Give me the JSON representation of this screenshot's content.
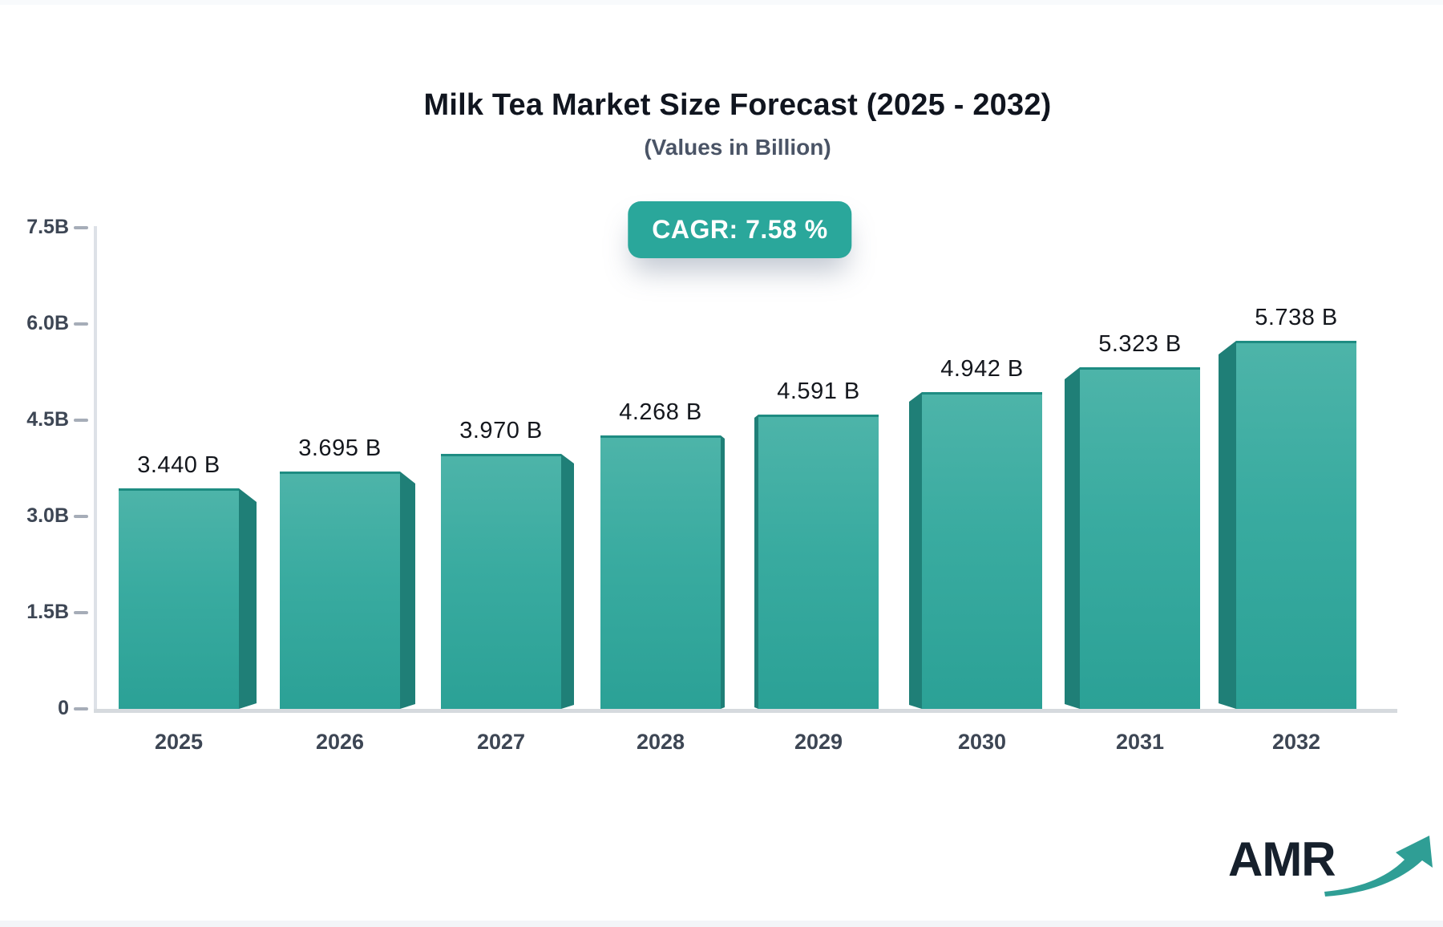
{
  "title": "Milk Tea Market Size Forecast (2025 - 2032)",
  "subtitle": "(Values in Billion)",
  "badge": {
    "label": "CAGR: 7.58 %"
  },
  "logo": {
    "text": "AMR"
  },
  "chart_data": {
    "type": "bar",
    "title": "Milk Tea Market Size Forecast (2025 - 2032)",
    "subtitle": "(Values in Billion)",
    "cagr_annotation": "CAGR: 7.58 %",
    "categories": [
      "2025",
      "2026",
      "2027",
      "2028",
      "2029",
      "2030",
      "2031",
      "2032"
    ],
    "values": [
      3.44,
      3.695,
      3.97,
      4.268,
      4.591,
      4.942,
      5.323,
      5.738
    ],
    "value_labels": [
      "3.440 B",
      "3.695 B",
      "3.970 B",
      "4.268 B",
      "4.591 B",
      "4.942 B",
      "5.323 B",
      "5.738 B"
    ],
    "unit": "Billion",
    "xlabel": "",
    "ylabel": "",
    "ylim": [
      0,
      7.5
    ],
    "ytick_labels": [
      "0",
      "1.5B",
      "3.0B",
      "4.5B",
      "6.0B",
      "7.5B"
    ],
    "ytick_values": [
      0,
      1.5,
      3.0,
      4.5,
      6.0,
      7.5
    ],
    "grid": false,
    "legend": false,
    "bar_color_top": "#4db4a9",
    "bar_color_bottom": "#2ba196",
    "bar_side_color": "#1f7f77",
    "badge_color": "#2aa79b",
    "axis_color": "#d6dade",
    "label_color": "#3d4654"
  }
}
